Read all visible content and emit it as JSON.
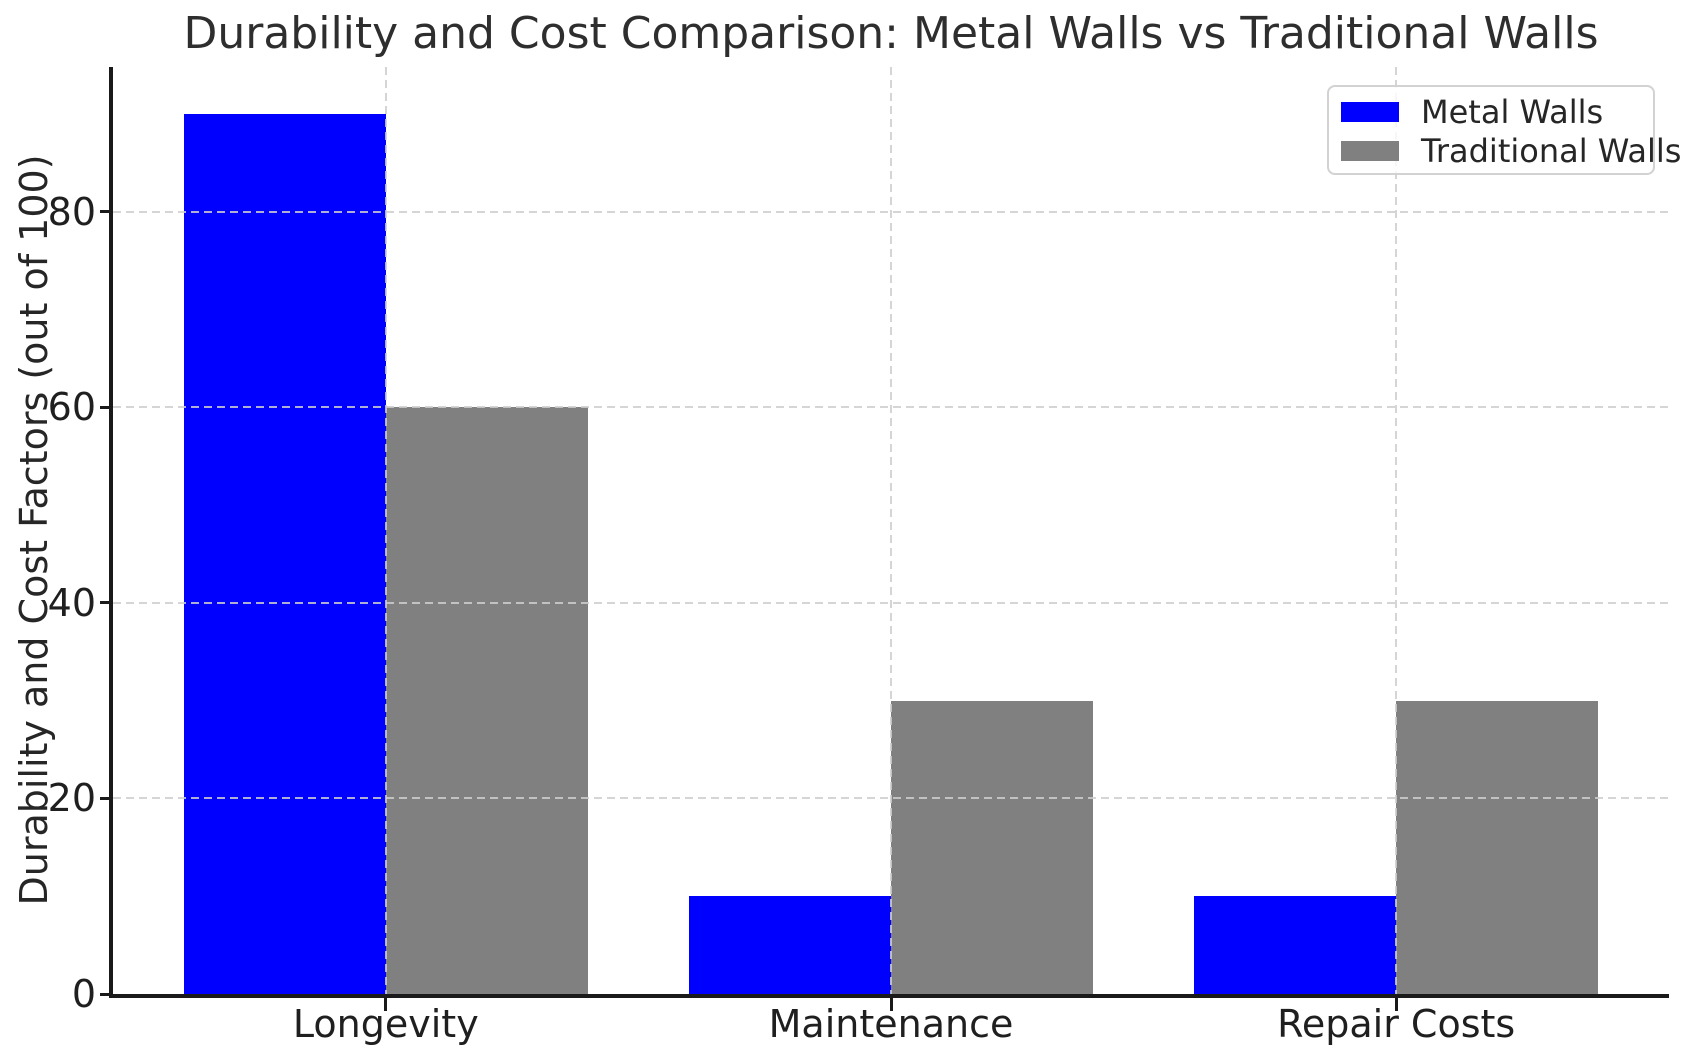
{
  "chart_data": {
    "type": "bar",
    "title": "Durability and Cost Comparison: Metal Walls vs Traditional Walls",
    "categories": [
      "Longevity",
      "Maintenance",
      "Repair Costs"
    ],
    "series": [
      {
        "name": "Metal Walls",
        "color": "#0000ff",
        "values": [
          90,
          10,
          10
        ]
      },
      {
        "name": "Traditional Walls",
        "color": "#808080",
        "values": [
          60,
          30,
          30
        ]
      }
    ],
    "xlabel": "",
    "ylabel": "Durability and Cost Factors (out of 100)",
    "yticks": [
      0,
      20,
      40,
      60,
      80
    ],
    "ylim": [
      0,
      94.8
    ],
    "bar_width": 0.4,
    "grid": true,
    "grid_style": "dashed",
    "grid_over_bars": true,
    "legend_position": "upper right"
  },
  "colors": {
    "metal_walls": "#0000ff",
    "traditional_walls": "#808080",
    "grid": "#cecece",
    "spine": "#1a1a1a",
    "text": "#262626",
    "background": "#ffffff"
  }
}
